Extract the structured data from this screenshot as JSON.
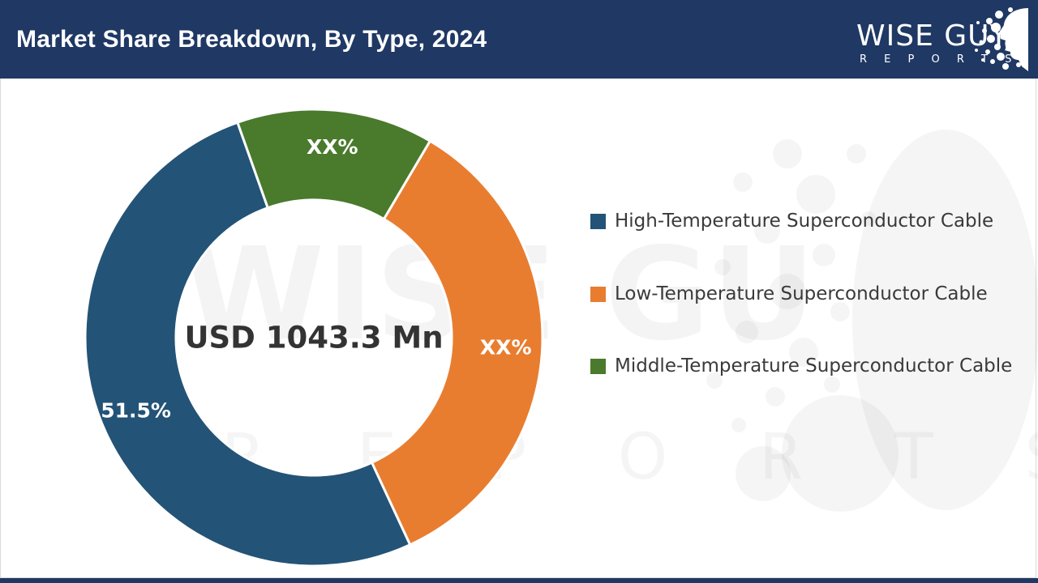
{
  "header": {
    "title": "Market Share Breakdown, By Type, 2024",
    "logo": {
      "line1": "WISE GUY",
      "line2": "R E P O R T S"
    }
  },
  "chart_data": {
    "type": "donut",
    "title": "Market Share Breakdown, By Type, 2024",
    "center_label": "USD 1043.3 Mn",
    "start_angle_deg": 109.5,
    "direction": "counterclockwise",
    "inner_radius_ratio": 0.603,
    "legend_position": "right",
    "segments": [
      {
        "name": "High-Temperature Superconductor Cable",
        "value_pct": 51.5,
        "display_label": "51.5%",
        "color": "#235377"
      },
      {
        "name": "Low-Temperature Superconductor Cable",
        "value_pct": 34.6,
        "display_label": "XX%",
        "color": "#e87d30"
      },
      {
        "name": "Middle-Temperature Superconductor Cable",
        "value_pct": 13.9,
        "display_label": "XX%",
        "color": "#4a7a2c"
      }
    ]
  },
  "watermark": {
    "line1": "WISE GU",
    "line2": "R E P O R T S"
  }
}
